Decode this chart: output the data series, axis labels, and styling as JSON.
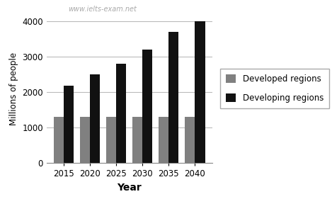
{
  "years": [
    "2015",
    "2020",
    "2025",
    "2030",
    "2035",
    "2040"
  ],
  "developed": [
    1300,
    1300,
    1300,
    1300,
    1300,
    1300
  ],
  "developing": [
    2180,
    2500,
    2800,
    3200,
    3700,
    4000
  ],
  "developed_color": "#808080",
  "developing_color": "#111111",
  "ylabel": "Millions of people",
  "xlabel": "Year",
  "ylim": [
    0,
    4200
  ],
  "yticks": [
    0,
    1000,
    2000,
    3000,
    4000
  ],
  "legend_labels": [
    "Developed regions",
    "Developing regions"
  ],
  "watermark": "www.ielts-exam.net",
  "bar_width": 0.38,
  "background_color": "#ffffff",
  "grid_color": "#bbbbbb"
}
